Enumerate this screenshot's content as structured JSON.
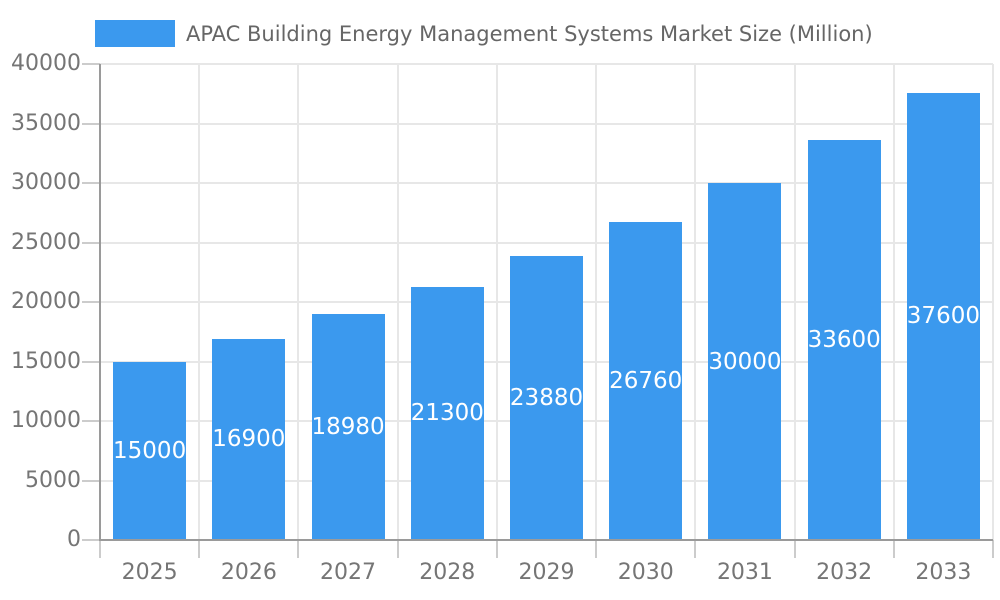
{
  "legend": {
    "label": "APAC Building Energy Management Systems Market Size (Million)"
  },
  "chart_data": {
    "type": "bar",
    "title": "APAC Building Energy Management Systems Market Size (Million)",
    "categories": [
      "2025",
      "2026",
      "2027",
      "2028",
      "2029",
      "2030",
      "2031",
      "2032",
      "2033"
    ],
    "values": [
      15000,
      16900,
      18980,
      21300,
      23880,
      26760,
      30000,
      33600,
      37600
    ],
    "yticks": [
      0,
      5000,
      10000,
      15000,
      20000,
      25000,
      30000,
      35000,
      40000
    ],
    "ylim": [
      0,
      40000
    ],
    "xlabel": "",
    "ylabel": "",
    "legend_position": "top",
    "grid": true,
    "bar_label_style": "white-centered-inside",
    "colors": {
      "bar": "#3B99EE",
      "gridline": "#e7e7e7",
      "tick": "#cccccc",
      "axis_line": "#9a9a9a",
      "tick_label": "#757575",
      "legend_text": "#666666",
      "bar_label": "#ffffff",
      "background": "#ffffff"
    }
  }
}
